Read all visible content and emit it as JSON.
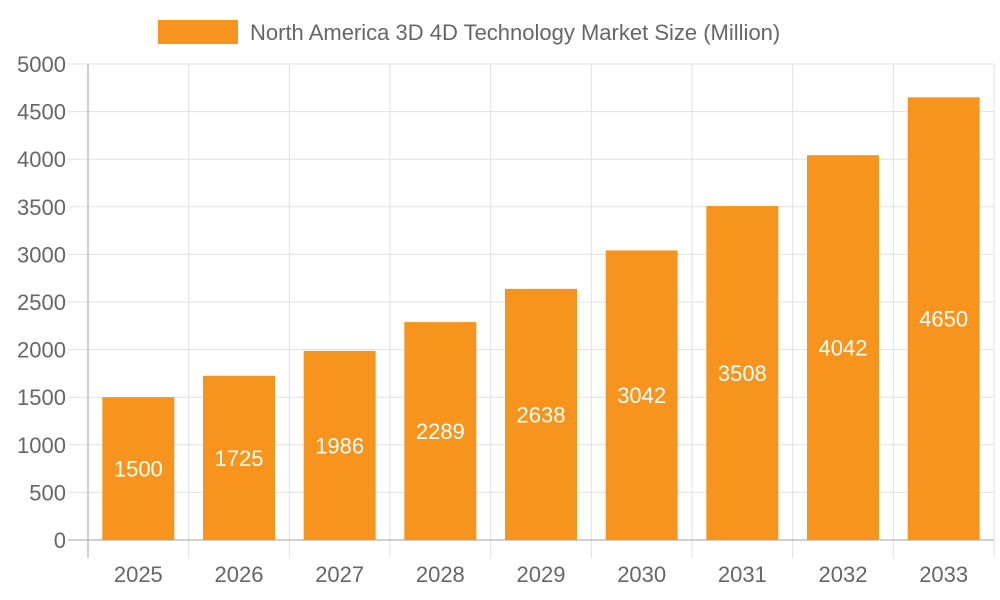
{
  "chart_data": {
    "type": "bar",
    "title": "",
    "xlabel": "",
    "ylabel": "",
    "categories": [
      "2025",
      "2026",
      "2027",
      "2028",
      "2029",
      "2030",
      "2031",
      "2032",
      "2033"
    ],
    "series": [
      {
        "name": "North America 3D 4D Technology Market Size (Million)",
        "values": [
          1500,
          1725,
          1986,
          2289,
          2638,
          3042,
          3508,
          4042,
          4650
        ]
      }
    ],
    "ylim": [
      0,
      5000
    ],
    "yticks": [
      0,
      500,
      1000,
      1500,
      2000,
      2500,
      3000,
      3500,
      4000,
      4500,
      5000
    ],
    "grid": true,
    "legend": "top",
    "data_labels": true,
    "colors": {
      "bar": "#f7941d",
      "grid": "#e1e1e1",
      "axis": "#a0a0a0",
      "text": "#666666",
      "label": "#ffffff"
    }
  }
}
